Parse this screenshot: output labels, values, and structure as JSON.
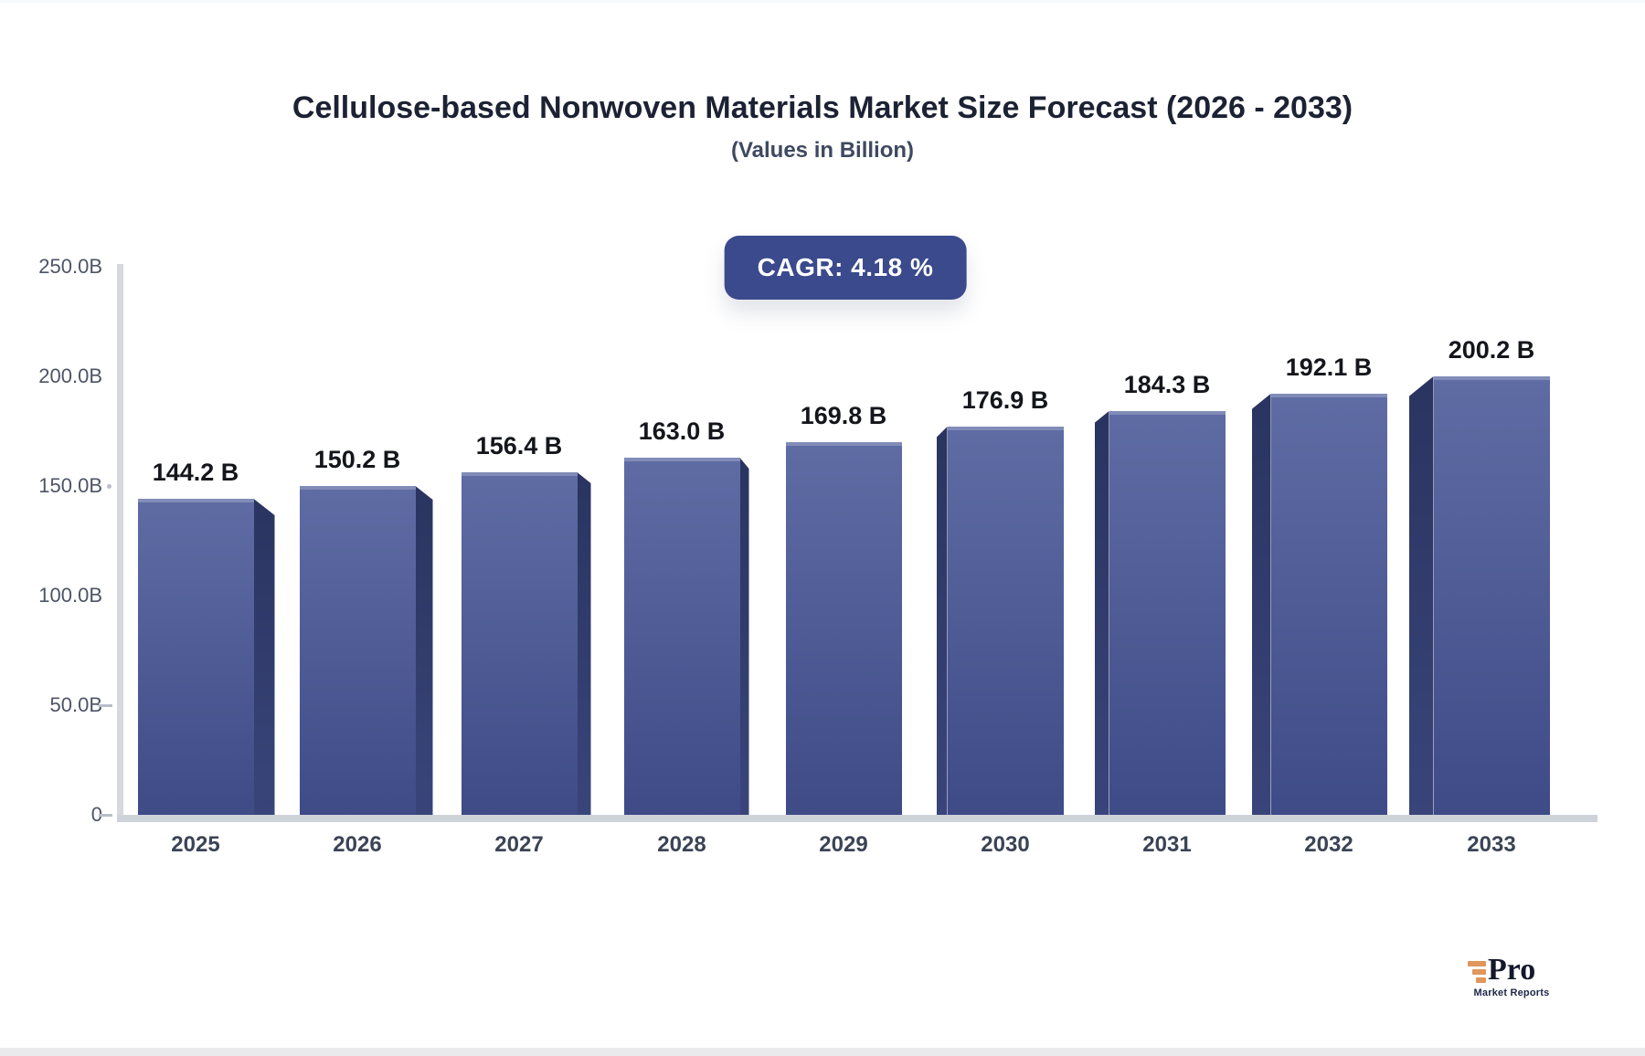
{
  "page": {
    "title": "Cellulose-based Nonwoven Materials Market Size Forecast (2026 - 2033)",
    "subtitle": "(Values in Billion)",
    "cagr_label": "CAGR: 4.18 %"
  },
  "chart_data": {
    "type": "bar",
    "title": "Cellulose-based Nonwoven Materials Market Size Forecast (2026 - 2033)",
    "subtitle": "(Values in Billion)",
    "cagr": "4.18 %",
    "categories": [
      "2025",
      "2026",
      "2027",
      "2028",
      "2029",
      "2030",
      "2031",
      "2032",
      "2033"
    ],
    "values": [
      144.2,
      150.2,
      156.4,
      163.0,
      169.8,
      176.9,
      184.3,
      192.1,
      200.2
    ],
    "value_labels": [
      "144.2 B",
      "150.2 B",
      "156.4 B",
      "163.0 B",
      "169.8 B",
      "176.9 B",
      "184.3 B",
      "192.1 B",
      "200.2 B"
    ],
    "unit": "Billion",
    "xlabel": "",
    "ylabel": "",
    "ylim": [
      0,
      250
    ],
    "yticks": [
      {
        "label": "250.0B",
        "value": 250,
        "tick": "none"
      },
      {
        "label": "200.0B",
        "value": 200,
        "tick": "none"
      },
      {
        "label": "150.0B",
        "value": 150,
        "tick": "dot"
      },
      {
        "label": "100.0B",
        "value": 100,
        "tick": "none"
      },
      {
        "label": "50.0B",
        "value": 50,
        "tick": "dash"
      },
      {
        "label": "0",
        "value": 0,
        "tick": "dash"
      }
    ],
    "grid": false,
    "legend_position": "none",
    "bar_color_top": "#5f6ca4",
    "bar_color_bottom": "#3e4b87",
    "bar_side_color_dark": "#2a3460",
    "bar_side_color_light": "#39457a"
  },
  "colors": {
    "badge_bg": "#3a4a8c",
    "axis_gray": "#d7d8dd",
    "baseline_gray": "#ced3da"
  },
  "logo": {
    "name": "Pro",
    "tagline": "Market Reports",
    "accent_color": "#e0965c",
    "bars_icon": "three-orange-speed-bars"
  }
}
